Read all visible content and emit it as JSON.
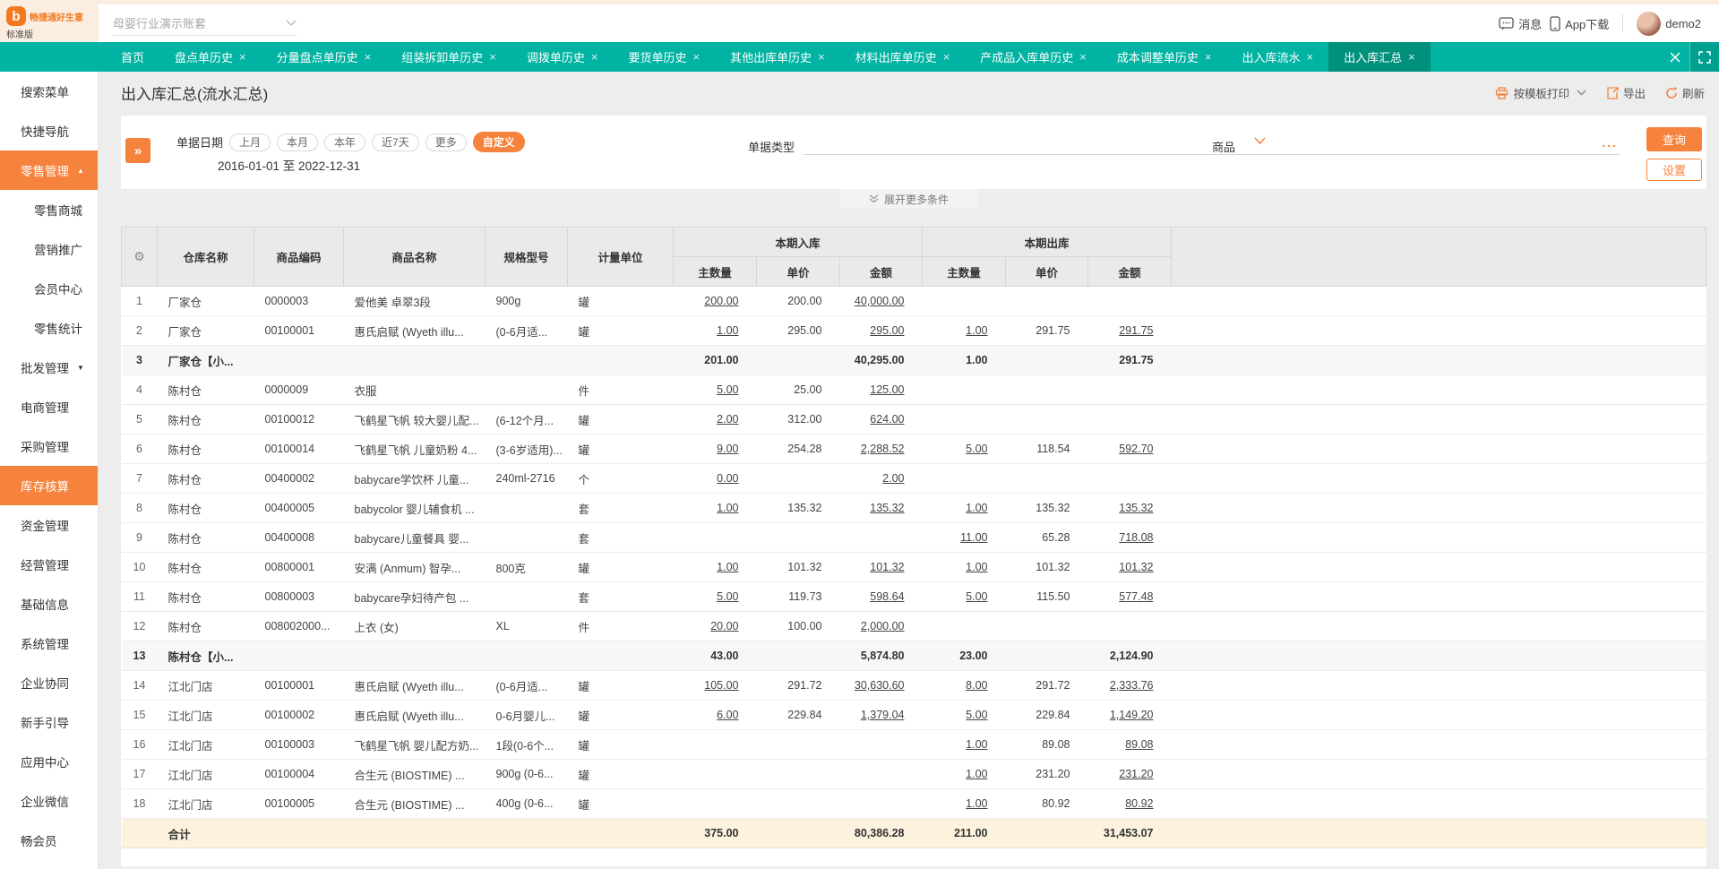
{
  "topbar": {
    "logo_title": "畅捷通好生意",
    "logo_subtitle": "标准版",
    "account_selector": "母婴行业演示账套",
    "messages_label": "消息",
    "app_download_label": "App下载",
    "username": "demo2"
  },
  "tabbar": {
    "tabs": [
      {
        "label": "首页",
        "closable": false,
        "active": false
      },
      {
        "label": "盘点单历史",
        "closable": true,
        "active": false
      },
      {
        "label": "分量盘点单历史",
        "closable": true,
        "active": false
      },
      {
        "label": "组装拆卸单历史",
        "closable": true,
        "active": false
      },
      {
        "label": "调拨单历史",
        "closable": true,
        "active": false
      },
      {
        "label": "要货单历史",
        "closable": true,
        "active": false
      },
      {
        "label": "其他出库单历史",
        "closable": true,
        "active": false
      },
      {
        "label": "材料出库单历史",
        "closable": true,
        "active": false
      },
      {
        "label": "产成品入库单历史",
        "closable": true,
        "active": false
      },
      {
        "label": "成本调整单历史",
        "closable": true,
        "active": false
      },
      {
        "label": "出入库流水",
        "closable": true,
        "active": false
      },
      {
        "label": "出入库汇总",
        "closable": true,
        "active": true
      }
    ]
  },
  "sidebar": {
    "items": [
      {
        "label": "搜索菜单",
        "type": "main"
      },
      {
        "label": "快捷导航",
        "type": "main"
      },
      {
        "label": "零售管理",
        "type": "main",
        "active": true,
        "arrow": "up"
      },
      {
        "label": "零售商城",
        "type": "sub"
      },
      {
        "label": "营销推广",
        "type": "sub"
      },
      {
        "label": "会员中心",
        "type": "sub"
      },
      {
        "label": "零售统计",
        "type": "sub"
      },
      {
        "label": "批发管理",
        "type": "main",
        "arrow": "down"
      },
      {
        "label": "电商管理",
        "type": "main"
      },
      {
        "label": "采购管理",
        "type": "main"
      },
      {
        "label": "库存核算",
        "type": "main",
        "active": true
      },
      {
        "label": "资金管理",
        "type": "main"
      },
      {
        "label": "经营管理",
        "type": "main"
      },
      {
        "label": "基础信息",
        "type": "main"
      },
      {
        "label": "系统管理",
        "type": "main"
      },
      {
        "label": "企业协同",
        "type": "main"
      },
      {
        "label": "新手引导",
        "type": "main"
      },
      {
        "label": "应用中心",
        "type": "main"
      },
      {
        "label": "企业微信",
        "type": "main"
      },
      {
        "label": "畅会员",
        "type": "main"
      }
    ]
  },
  "page": {
    "title": "出入库汇总(流水汇总)",
    "print_label": "按模板打印",
    "export_label": "导出",
    "refresh_label": "刷新"
  },
  "filters": {
    "date_label": "单据日期",
    "date_pills": [
      "上月",
      "本月",
      "本年",
      "近7天",
      "更多"
    ],
    "date_custom": "自定义",
    "date_range": "2016-01-01 至 2022-12-31",
    "doc_type_label": "单据类型",
    "product_label": "商品",
    "search_button": "查询",
    "settings_button": "设置",
    "expand_more": "展开更多条件"
  },
  "table": {
    "left_headers": [
      "仓库名称",
      "商品编码",
      "商品名称",
      "规格型号",
      "计量单位"
    ],
    "group_in": "本期入库",
    "group_out": "本期出库",
    "sub_headers": [
      "主数量",
      "单价",
      "金额"
    ],
    "rows": [
      {
        "num": "1",
        "type": "data",
        "warehouse": "厂家仓",
        "code": "0000003",
        "name": "爱他美 卓翠3段",
        "spec": "900g",
        "unit": "罐",
        "iq": "200.00",
        "ip": "200.00",
        "ia": "40,000.00",
        "oq": "",
        "op": "",
        "oa": ""
      },
      {
        "num": "2",
        "type": "data",
        "warehouse": "厂家仓",
        "code": "00100001",
        "name": "惠氏启赋 (Wyeth illu...",
        "spec": "(0-6月适...",
        "unit": "罐",
        "iq": "1.00",
        "ip": "295.00",
        "ia": "295.00",
        "oq": "1.00",
        "op": "291.75",
        "oa": "291.75"
      },
      {
        "num": "3",
        "type": "subtotal",
        "warehouse": "厂家仓【小...",
        "code": "",
        "name": "",
        "spec": "",
        "unit": "",
        "iq": "201.00",
        "ip": "",
        "ia": "40,295.00",
        "oq": "1.00",
        "op": "",
        "oa": "291.75"
      },
      {
        "num": "4",
        "type": "data",
        "warehouse": "陈村仓",
        "code": "0000009",
        "name": "衣服",
        "spec": "",
        "unit": "件",
        "iq": "5.00",
        "ip": "25.00",
        "ia": "125.00",
        "oq": "",
        "op": "",
        "oa": ""
      },
      {
        "num": "5",
        "type": "data",
        "warehouse": "陈村仓",
        "code": "00100012",
        "name": "飞鹤星飞帆 较大婴儿配...",
        "spec": "(6-12个月...",
        "unit": "罐",
        "iq": "2.00",
        "ip": "312.00",
        "ia": "624.00",
        "oq": "",
        "op": "",
        "oa": ""
      },
      {
        "num": "6",
        "type": "data",
        "warehouse": "陈村仓",
        "code": "00100014",
        "name": "飞鹤星飞帆 儿童奶粉 4...",
        "spec": "(3-6岁适用)...",
        "unit": "罐",
        "iq": "9.00",
        "ip": "254.28",
        "ia": "2,288.52",
        "oq": "5.00",
        "op": "118.54",
        "oa": "592.70"
      },
      {
        "num": "7",
        "type": "data",
        "warehouse": "陈村仓",
        "code": "00400002",
        "name": "babycare学饮杯 儿童...",
        "spec": "240ml-2716",
        "unit": "个",
        "iq": "0.00",
        "ip": "",
        "ia": "2.00",
        "oq": "",
        "op": "",
        "oa": ""
      },
      {
        "num": "8",
        "type": "data",
        "warehouse": "陈村仓",
        "code": "00400005",
        "name": "babycolor 婴儿辅食机 ...",
        "spec": "",
        "unit": "套",
        "iq": "1.00",
        "ip": "135.32",
        "ia": "135.32",
        "oq": "1.00",
        "op": "135.32",
        "oa": "135.32"
      },
      {
        "num": "9",
        "type": "data",
        "warehouse": "陈村仓",
        "code": "00400008",
        "name": "babycare儿童餐具 婴...",
        "spec": "",
        "unit": "套",
        "iq": "",
        "ip": "",
        "ia": "",
        "oq": "11.00",
        "op": "65.28",
        "oa": "718.08"
      },
      {
        "num": "10",
        "type": "data",
        "warehouse": "陈村仓",
        "code": "00800001",
        "name": "安满 (Anmum) 智孕...",
        "spec": "800克",
        "unit": "罐",
        "iq": "1.00",
        "ip": "101.32",
        "ia": "101.32",
        "oq": "1.00",
        "op": "101.32",
        "oa": "101.32"
      },
      {
        "num": "11",
        "type": "data",
        "warehouse": "陈村仓",
        "code": "00800003",
        "name": "babycare孕妇待产包 ...",
        "spec": "",
        "unit": "套",
        "iq": "5.00",
        "ip": "119.73",
        "ia": "598.64",
        "oq": "5.00",
        "op": "115.50",
        "oa": "577.48"
      },
      {
        "num": "12",
        "type": "data",
        "warehouse": "陈村仓",
        "code": "008002000...",
        "name": "上衣 (女)",
        "spec": "XL",
        "unit": "件",
        "iq": "20.00",
        "ip": "100.00",
        "ia": "2,000.00",
        "oq": "",
        "op": "",
        "oa": ""
      },
      {
        "num": "13",
        "type": "subtotal",
        "warehouse": "陈村仓【小...",
        "code": "",
        "name": "",
        "spec": "",
        "unit": "",
        "iq": "43.00",
        "ip": "",
        "ia": "5,874.80",
        "oq": "23.00",
        "op": "",
        "oa": "2,124.90"
      },
      {
        "num": "14",
        "type": "data",
        "warehouse": "江北门店",
        "code": "00100001",
        "name": "惠氏启赋 (Wyeth illu...",
        "spec": "(0-6月适...",
        "unit": "罐",
        "iq": "105.00",
        "ip": "291.72",
        "ia": "30,630.60",
        "oq": "8.00",
        "op": "291.72",
        "oa": "2,333.76"
      },
      {
        "num": "15",
        "type": "data",
        "warehouse": "江北门店",
        "code": "00100002",
        "name": "惠氏启赋 (Wyeth illu...",
        "spec": "0-6月婴儿...",
        "unit": "罐",
        "iq": "6.00",
        "ip": "229.84",
        "ia": "1,379.04",
        "oq": "5.00",
        "op": "229.84",
        "oa": "1,149.20"
      },
      {
        "num": "16",
        "type": "data",
        "warehouse": "江北门店",
        "code": "00100003",
        "name": "飞鹤星飞帆 婴儿配方奶...",
        "spec": "1段(0-6个...",
        "unit": "罐",
        "iq": "",
        "ip": "",
        "ia": "",
        "oq": "1.00",
        "op": "89.08",
        "oa": "89.08"
      },
      {
        "num": "17",
        "type": "data",
        "warehouse": "江北门店",
        "code": "00100004",
        "name": "合生元 (BIOSTIME) ...",
        "spec": "900g (0-6...",
        "unit": "罐",
        "iq": "",
        "ip": "",
        "ia": "",
        "oq": "1.00",
        "op": "231.20",
        "oa": "231.20"
      },
      {
        "num": "18",
        "type": "data",
        "warehouse": "江北门店",
        "code": "00100005",
        "name": "合生元 (BIOSTIME) ...",
        "spec": "400g (0-6...",
        "unit": "罐",
        "iq": "",
        "ip": "",
        "ia": "",
        "oq": "1.00",
        "op": "80.92",
        "oa": "80.92"
      },
      {
        "num": "",
        "type": "total",
        "warehouse": "合计",
        "code": "",
        "name": "",
        "spec": "",
        "unit": "",
        "iq": "375.00",
        "ip": "",
        "ia": "80,386.28",
        "oq": "211.00",
        "op": "",
        "oa": "31,453.07"
      }
    ]
  },
  "colors": {
    "brand_teal": "#00b3a2",
    "tab_active_teal": "#00917c",
    "accent_orange": "#f6833d",
    "topbar_cream": "#fbeee0",
    "total_row_bg": "#fcf2dd",
    "header_bg": "#eaeaea"
  }
}
